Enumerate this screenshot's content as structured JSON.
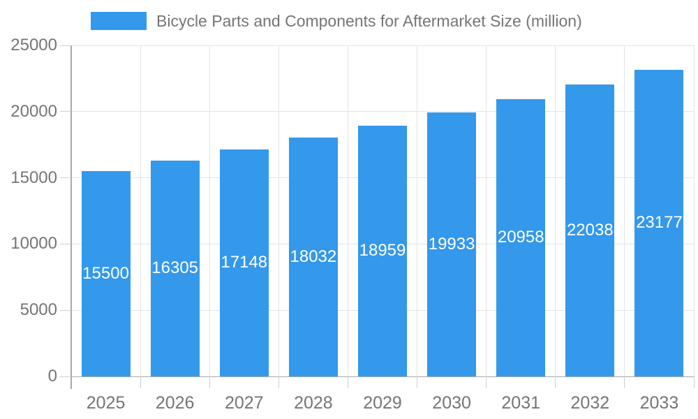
{
  "legend": {
    "label": "Bicycle Parts and Components for Aftermarket Size (million)"
  },
  "chart_data": {
    "type": "bar",
    "title": "Bicycle Parts and Components for Aftermarket Size (million)",
    "categories": [
      "2025",
      "2026",
      "2027",
      "2028",
      "2029",
      "2030",
      "2031",
      "2032",
      "2033"
    ],
    "values": [
      15500,
      16305,
      17148,
      18032,
      18959,
      19933,
      20958,
      22038,
      23177
    ],
    "xlabel": "",
    "ylabel": "",
    "ylim": [
      0,
      25000
    ],
    "yticks": [
      0,
      5000,
      10000,
      15000,
      20000,
      25000
    ],
    "ytick_labels": [
      "0",
      "5000",
      "10000",
      "15000",
      "20000",
      "25000"
    ],
    "grid": true,
    "legend_position": "top",
    "bar_labels_inside": true
  },
  "colors": {
    "bar": "#3498EB",
    "bar_label": "#FFFFFF",
    "axis_text": "#757575",
    "gridline": "#E4E4E4",
    "axis_line": "#A8A8A8",
    "tick": "#CFCFCF",
    "background": "#FFFFFF"
  }
}
